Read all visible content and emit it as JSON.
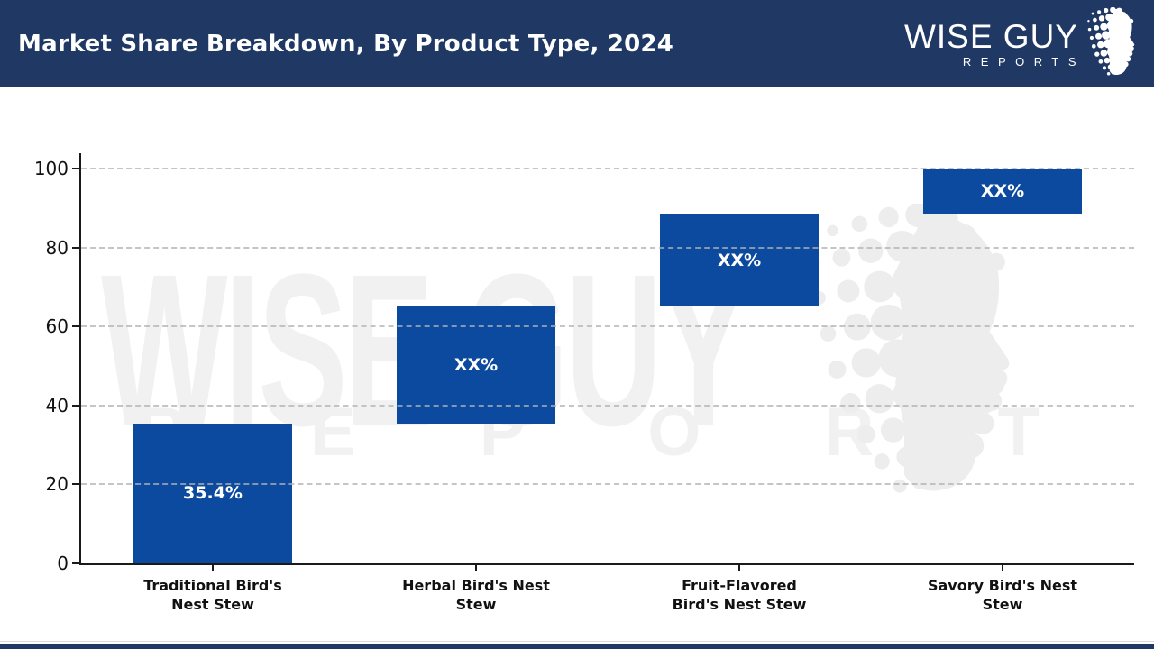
{
  "header": {
    "title": "Market Share Breakdown, By Product Type, 2024",
    "background_color": "#1f3864",
    "logo": {
      "line1": "WISE GUY",
      "line2": "REPORTS",
      "icon": "wiseguy-head-icon",
      "color": "#ffffff"
    }
  },
  "watermark": {
    "line1": "WISE GUY",
    "line2": "R E P O R T S",
    "icon": "wiseguy-head-icon",
    "color": "#f1f1f1"
  },
  "chart_data": {
    "type": "bar",
    "subtype": "waterfall",
    "title": "Market Share Breakdown, By Product Type, 2024",
    "categories": [
      [
        "Traditional Bird's",
        "Nest Stew"
      ],
      [
        "Herbal Bird's Nest",
        "Stew"
      ],
      [
        "Fruit-Flavored",
        "Bird's Nest Stew"
      ],
      [
        "Savory Bird's Nest",
        "Stew"
      ]
    ],
    "bars": [
      {
        "start": 0,
        "end": 35.4,
        "label": "35.4%"
      },
      {
        "start": 35.4,
        "end": 65,
        "label": "XX%"
      },
      {
        "start": 65,
        "end": 88.5,
        "label": "XX%"
      },
      {
        "start": 88.5,
        "end": 100,
        "label": "XX%"
      }
    ],
    "ylim": [
      0,
      100
    ],
    "yticks": [
      0,
      20,
      40,
      60,
      80,
      100
    ],
    "xlabel": "",
    "ylabel": "",
    "legend": "none",
    "grid": {
      "axis": "y",
      "style": "dashed",
      "drawn_over_bars": true,
      "color": "#b2b2b2"
    },
    "bar_color": "#0b4a9e",
    "bar_label_color": "#ffffff",
    "axis_color": "#1a1a1a"
  },
  "footer": {
    "bar_color": "#1f3864"
  }
}
